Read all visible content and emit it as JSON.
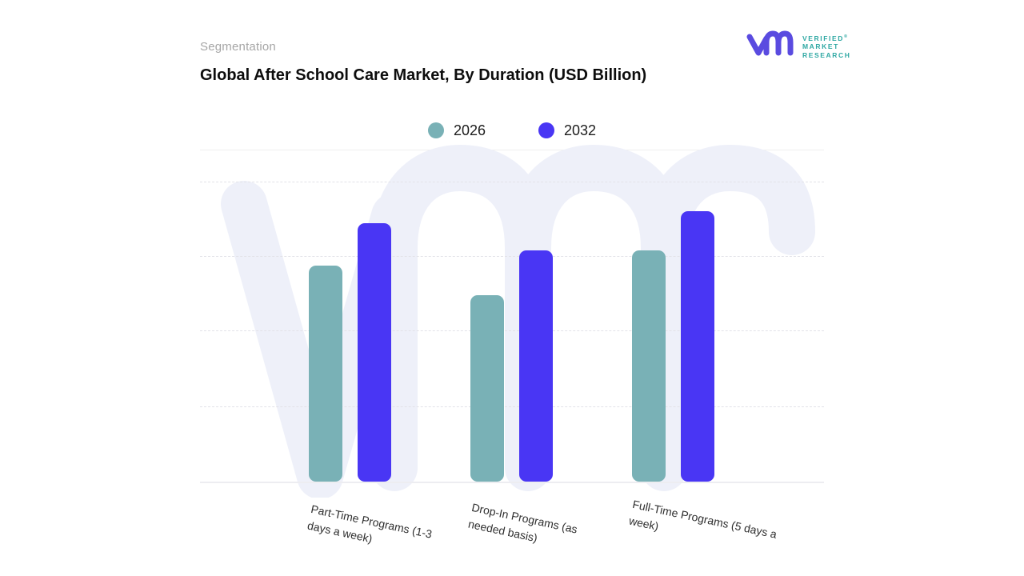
{
  "header": {
    "eyebrow": "Segmentation",
    "title": "Global After School Care Market, By Duration (USD Billion)"
  },
  "logo": {
    "line1": "VERIFIED",
    "line2": "MARKET",
    "line3": "RESEARCH",
    "registered": "®",
    "monogram_color": "#5a4be0",
    "text_color": "#2fa8a3"
  },
  "legend": [
    {
      "label": "2026",
      "color": "#79b1b6"
    },
    {
      "label": "2032",
      "color": "#4936f4"
    }
  ],
  "chart_data": {
    "type": "bar",
    "title": "Global After School Care Market, By Duration (USD Billion)",
    "categories": [
      "Part-Time Programs (1-3 days a week)",
      "Drop-In Programs (as needed basis)",
      "Full-Time Programs (5 days a week)"
    ],
    "categories_wrapped": [
      "Part-Time Programs (1-3\ndays a week)",
      "Drop-In Programs (as\nneeded basis)",
      "Full-Time Programs (5 days a\nweek)"
    ],
    "series": [
      {
        "name": "2026",
        "color": "#79b1b6",
        "values": [
          72,
          62,
          77
        ]
      },
      {
        "name": "2032",
        "color": "#4936f4",
        "values": [
          86,
          77,
          90
        ]
      }
    ],
    "xlabel": "",
    "ylabel": "",
    "ylim": [
      0,
      100
    ],
    "y_tick_labels_visible": false,
    "grid": "horizontal-dashed",
    "legend_position": "top-center",
    "note": "No numeric axis labels are shown in the figure; series values are estimated relative bar heights (% of plot height)."
  },
  "watermark": {
    "name": "vmr-watermark",
    "color": "#eef0f9"
  }
}
